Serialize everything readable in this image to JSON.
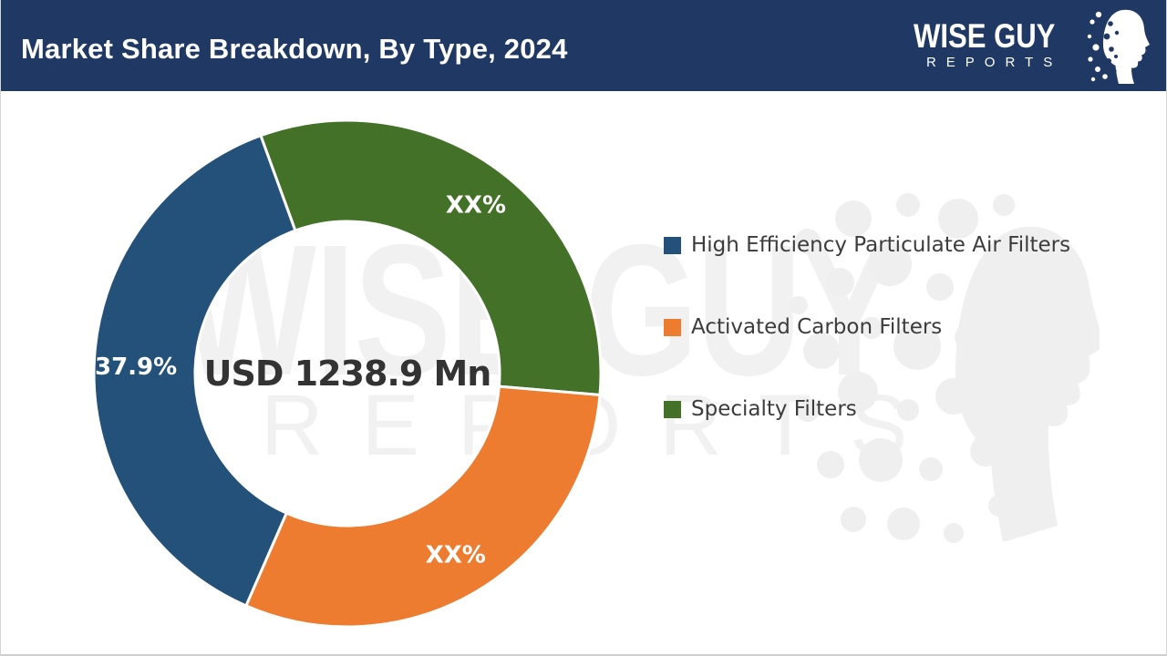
{
  "header": {
    "title": "Market Share Breakdown, By Type, 2024",
    "bg_color": "#1F3864",
    "text_color": "#ffffff",
    "logo": {
      "wordmark": "WISE GUY",
      "subtitle": "REPORTS"
    }
  },
  "chart_data": {
    "type": "pie",
    "subtype": "donut",
    "title": "Market Share Breakdown, By Type, 2024",
    "center_label": "USD 1238.9 Mn",
    "units": "percent market share",
    "start_angle_deg": 110,
    "clockwise": true,
    "draw_sequence": [
      2,
      1,
      0
    ],
    "inner_radius_ratio": 0.6,
    "legend_position": "right",
    "gridlines": false,
    "segments": [
      {
        "name": "High Efficiency Particulate Air Filters",
        "value_pct": 37.9,
        "label": "37.9%",
        "color": "#24517A"
      },
      {
        "name": "Activated Carbon Filters",
        "value_pct": 30.2,
        "label": "XX%",
        "color": "#ED7C31"
      },
      {
        "name": "Specialty Filters",
        "value_pct": 31.9,
        "label": "XX%",
        "color": "#447128"
      }
    ]
  },
  "watermark": {
    "wordmark": "WISE GUY",
    "subtitle": "REPORTS"
  }
}
